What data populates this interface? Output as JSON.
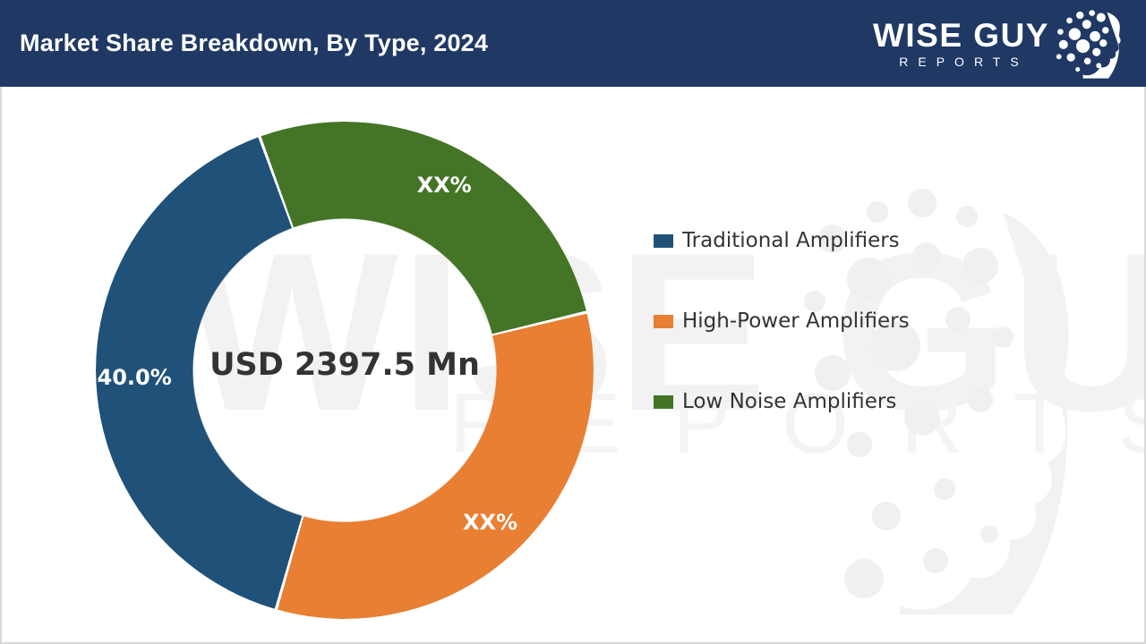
{
  "header": {
    "title": "Market Share Breakdown, By Type, 2024",
    "logo": {
      "brand": "WISE GUY",
      "subtitle": "REPORTS"
    }
  },
  "watermark": {
    "brand": "WISE GUY",
    "subtitle": "REPORTS"
  },
  "chart_data": {
    "type": "donut",
    "title": "Market Share Breakdown, By Type, 2024",
    "center_label": "USD 2397.5 Mn",
    "start_angle_deg": 196,
    "direction": "clockwise",
    "hole_ratio": 0.61,
    "legend_position": "right",
    "segments": [
      {
        "name": "Traditional Amplifiers",
        "value": 40.0,
        "label": "40.0%",
        "color": "#205179"
      },
      {
        "name": "Low Noise Amplifiers",
        "value": 26.8,
        "label": "XX%",
        "color": "#447527"
      },
      {
        "name": "High-Power Amplifiers",
        "value": 33.2,
        "label": "XX%",
        "color": "#e87f33"
      }
    ],
    "legend": [
      {
        "label": "Traditional Amplifiers",
        "color": "#205179"
      },
      {
        "label": "High-Power Amplifiers",
        "color": "#e87f33"
      },
      {
        "label": "Low Noise Amplifiers",
        "color": "#447527"
      }
    ]
  },
  "colors": {
    "header_bg": "#1f3864",
    "page_bg": "#ffffff",
    "border": "#d9d9d9",
    "text_dark": "#333333",
    "watermark": "#f2f2f2"
  }
}
